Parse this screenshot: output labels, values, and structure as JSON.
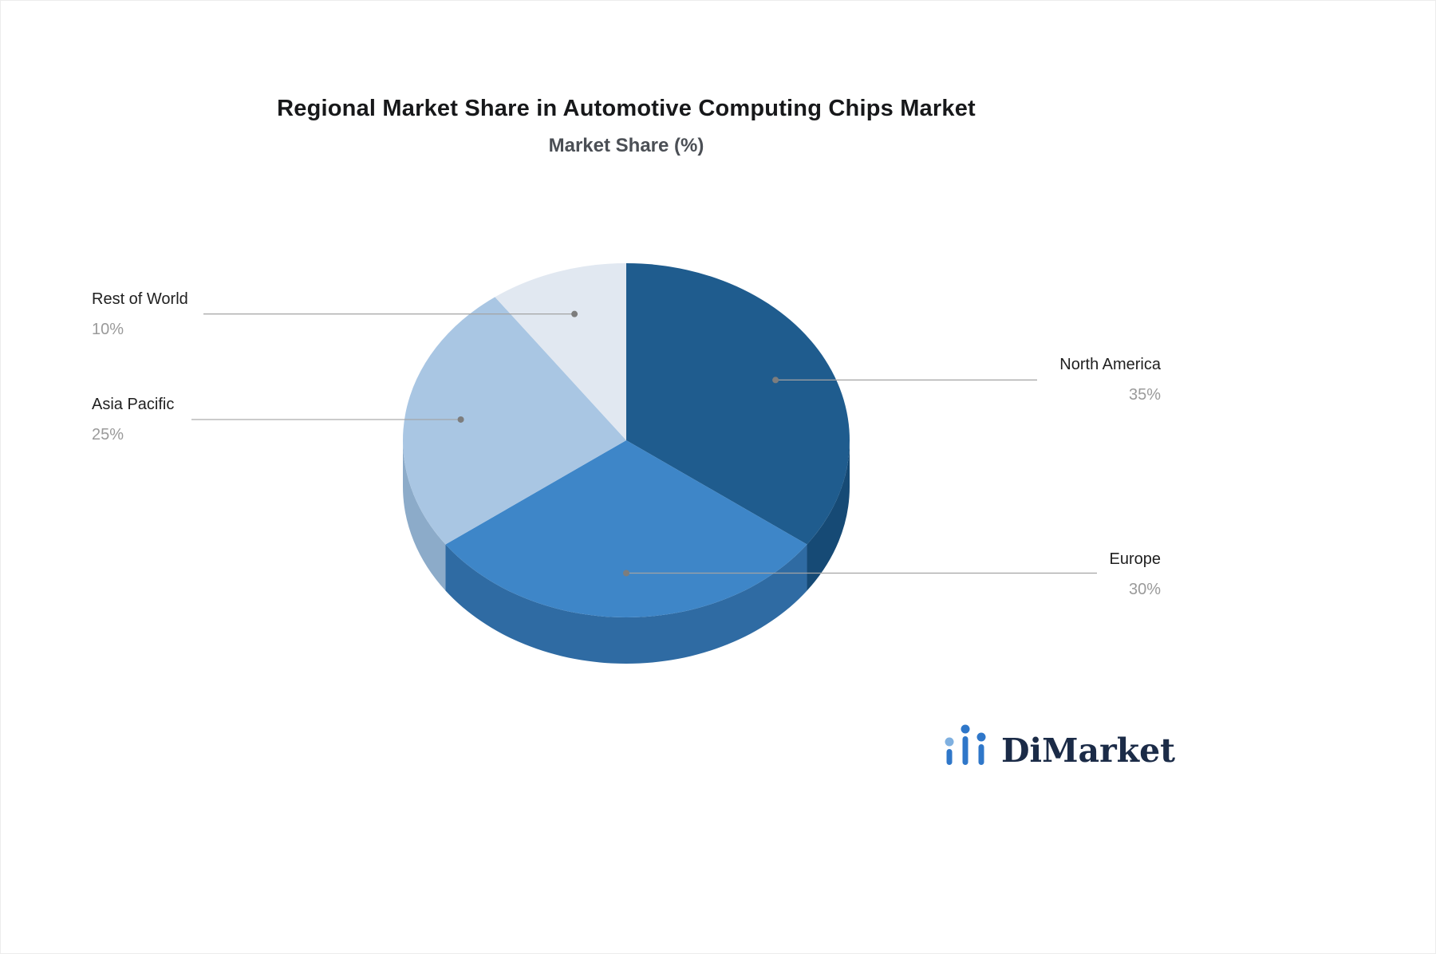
{
  "title": "Regional Market Share in Automotive Computing Chips Market",
  "subtitle": "Market Share (%)",
  "watermark": {
    "brand": "DiMarket"
  },
  "chart_data": {
    "type": "pie",
    "title": "Regional Market Share in Automotive Computing Chips Market",
    "subtitle": "Market Share (%)",
    "unit": "%",
    "style": "3d-pie",
    "legend_position": "none",
    "label_style": "callout-lines",
    "start_angle_deg": 0,
    "direction": "clockwise",
    "slices": [
      {
        "label": "North America",
        "value": 35,
        "display": "35%",
        "color": "#1f5c8e",
        "side_color": "#164a75"
      },
      {
        "label": "Europe",
        "value": 30,
        "display": "30%",
        "color": "#3e86c8",
        "side_color": "#2f6ba3"
      },
      {
        "label": "Asia Pacific",
        "value": 25,
        "display": "25%",
        "color": "#a9c6e3",
        "side_color": "#8cabc9"
      },
      {
        "label": "Rest of World",
        "value": 10,
        "display": "10%",
        "color": "#e1e8f1",
        "side_color": "#c4cfdd"
      }
    ],
    "callout_line_color": "#a3a3a3",
    "callout_dot_color": "#7d7d7d"
  }
}
